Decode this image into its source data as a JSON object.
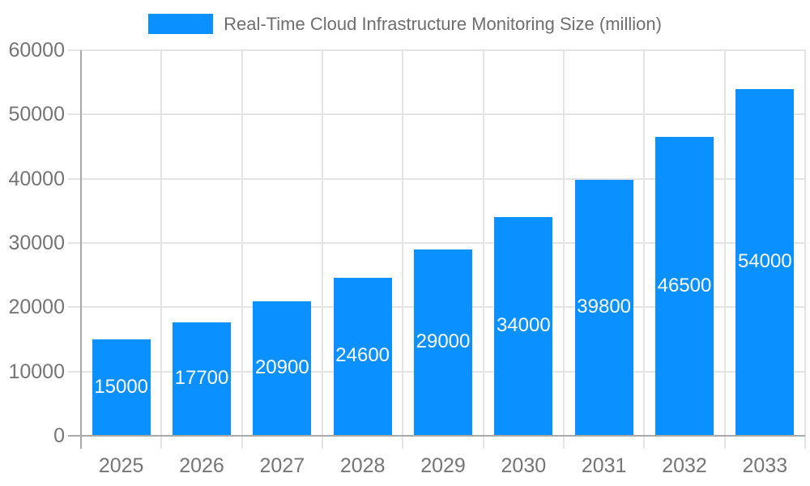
{
  "chart_data": {
    "type": "bar",
    "title": "Real-Time Cloud Infrastructure Monitoring Size (million)",
    "categories": [
      "2025",
      "2026",
      "2027",
      "2028",
      "2029",
      "2030",
      "2031",
      "2032",
      "2033"
    ],
    "values": [
      15000,
      17700,
      20900,
      24600,
      29000,
      34000,
      39800,
      46500,
      54000
    ],
    "xlabel": "",
    "ylabel": "",
    "ylim": [
      0,
      60000
    ],
    "yticks": [
      0,
      10000,
      20000,
      30000,
      40000,
      50000,
      60000
    ],
    "grid": true,
    "legend_position": "top-center",
    "bar_label_position": "inside-center",
    "colors": {
      "bar": "#0A90FF",
      "grid": "#E4E4E4",
      "axis": "#A9A9A9",
      "axis_text": "#757575",
      "title_text": "#6E6E6E",
      "bar_label_text": "#FFFFFF",
      "background": "#FFFFFF"
    }
  }
}
